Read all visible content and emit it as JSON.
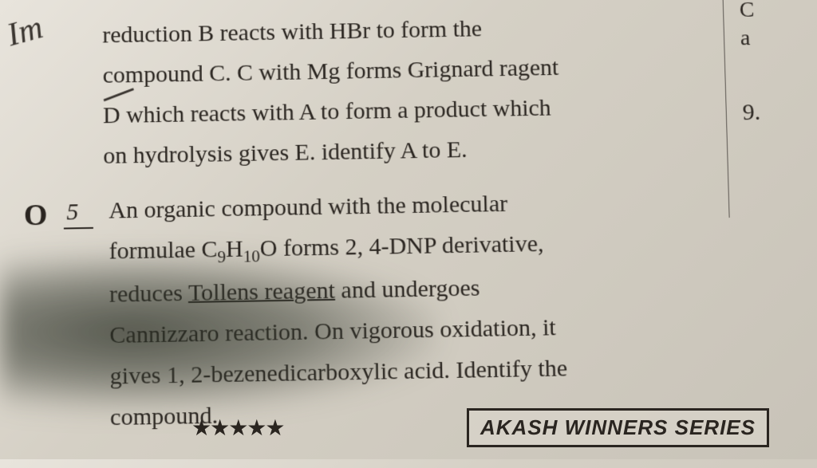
{
  "handwriting": "Im",
  "q4": {
    "line1": "reduction B reacts with HBr to form the",
    "line2": "compound C. C with Mg forms Grignard ragent",
    "line3": "D which reacts with A to form a product which",
    "line4": "on hydrolysis gives E. identify A to E."
  },
  "q5": {
    "number": "5",
    "circle": "O",
    "line1": "An organic compound with the molecular",
    "line2_pre": "formulae C",
    "line2_sub1": "9",
    "line2_mid1": "H",
    "line2_sub2": "10",
    "line2_mid2": "O forms 2, 4-DNP derivative,",
    "line3_pre": "reduces ",
    "line3_underline": "Tollens reagent",
    "line3_post": " and undergoes",
    "line4": "Cannizzaro reaction. On vigorous oxidation, it",
    "line5": "gives 1, 2-bezenedicarboxylic acid. Identify the",
    "line6": "compound."
  },
  "right": {
    "frag1": "C",
    "frag2": "a",
    "q9": "9."
  },
  "brand": "AKASH WINNERS SERIES",
  "stars": "★★★★★",
  "colors": {
    "text": "#2a2520",
    "bg_light": "#e8e4dc",
    "bg_dark": "#c8c3b8",
    "shadow": "rgba(40,45,35,0.75)"
  },
  "typography": {
    "body_fontsize": 30,
    "brand_fontsize": 26,
    "font_family": "Georgia, Times New Roman, serif"
  }
}
